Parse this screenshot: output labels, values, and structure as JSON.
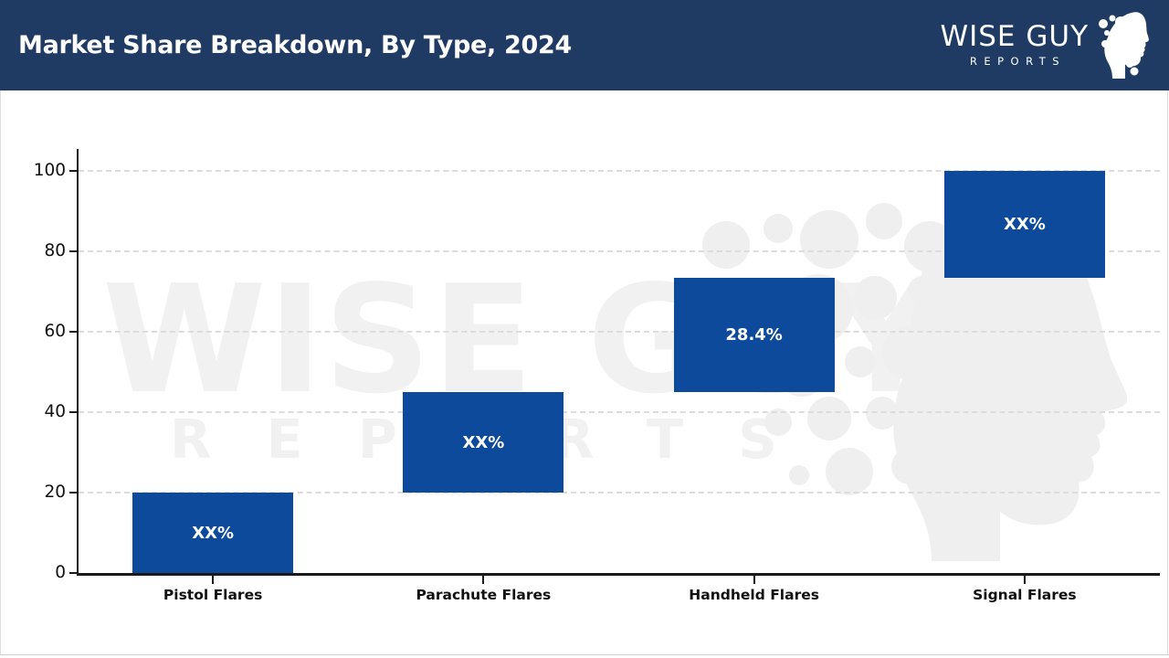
{
  "header": {
    "title": "Market Share Breakdown, By Type, 2024",
    "logo": {
      "name": "WISE GUY",
      "sub": "REPORTS"
    }
  },
  "watermark": {
    "name": "WISE GUY",
    "sub": "REPORTS"
  },
  "colors": {
    "header_bg": "#1f3a63",
    "bar": "#0d4a9c",
    "bar_label": "#ffffff",
    "gridline": "#dcdcdc",
    "axis": "#1a1a1a",
    "tick_label": "#111111",
    "watermark": "#f1f1f1",
    "background": "#ffffff"
  },
  "chart_data": {
    "type": "bar",
    "subtype": "floating-waterfall",
    "title": "Market Share Breakdown, By Type, 2024",
    "xlabel": "",
    "ylabel": "",
    "categories": [
      "Pistol Flares",
      "Parachute Flares",
      "Handheld Flares",
      "Signal Flares"
    ],
    "bars": [
      {
        "category": "Pistol Flares",
        "start": 0,
        "end": 20,
        "value": 20,
        "label": "XX%"
      },
      {
        "category": "Parachute Flares",
        "start": 20,
        "end": 45,
        "value": 25,
        "label": "XX%"
      },
      {
        "category": "Handheld Flares",
        "start": 45,
        "end": 73.4,
        "value": 28.4,
        "label": "28.4%"
      },
      {
        "category": "Signal Flares",
        "start": 73.4,
        "end": 100,
        "value": 26.6,
        "label": "XX%"
      }
    ],
    "yticks": [
      0,
      20,
      40,
      60,
      80,
      100
    ],
    "ylim": [
      0,
      105.5
    ],
    "grid": "horizontal-dashed",
    "legend": "none"
  }
}
